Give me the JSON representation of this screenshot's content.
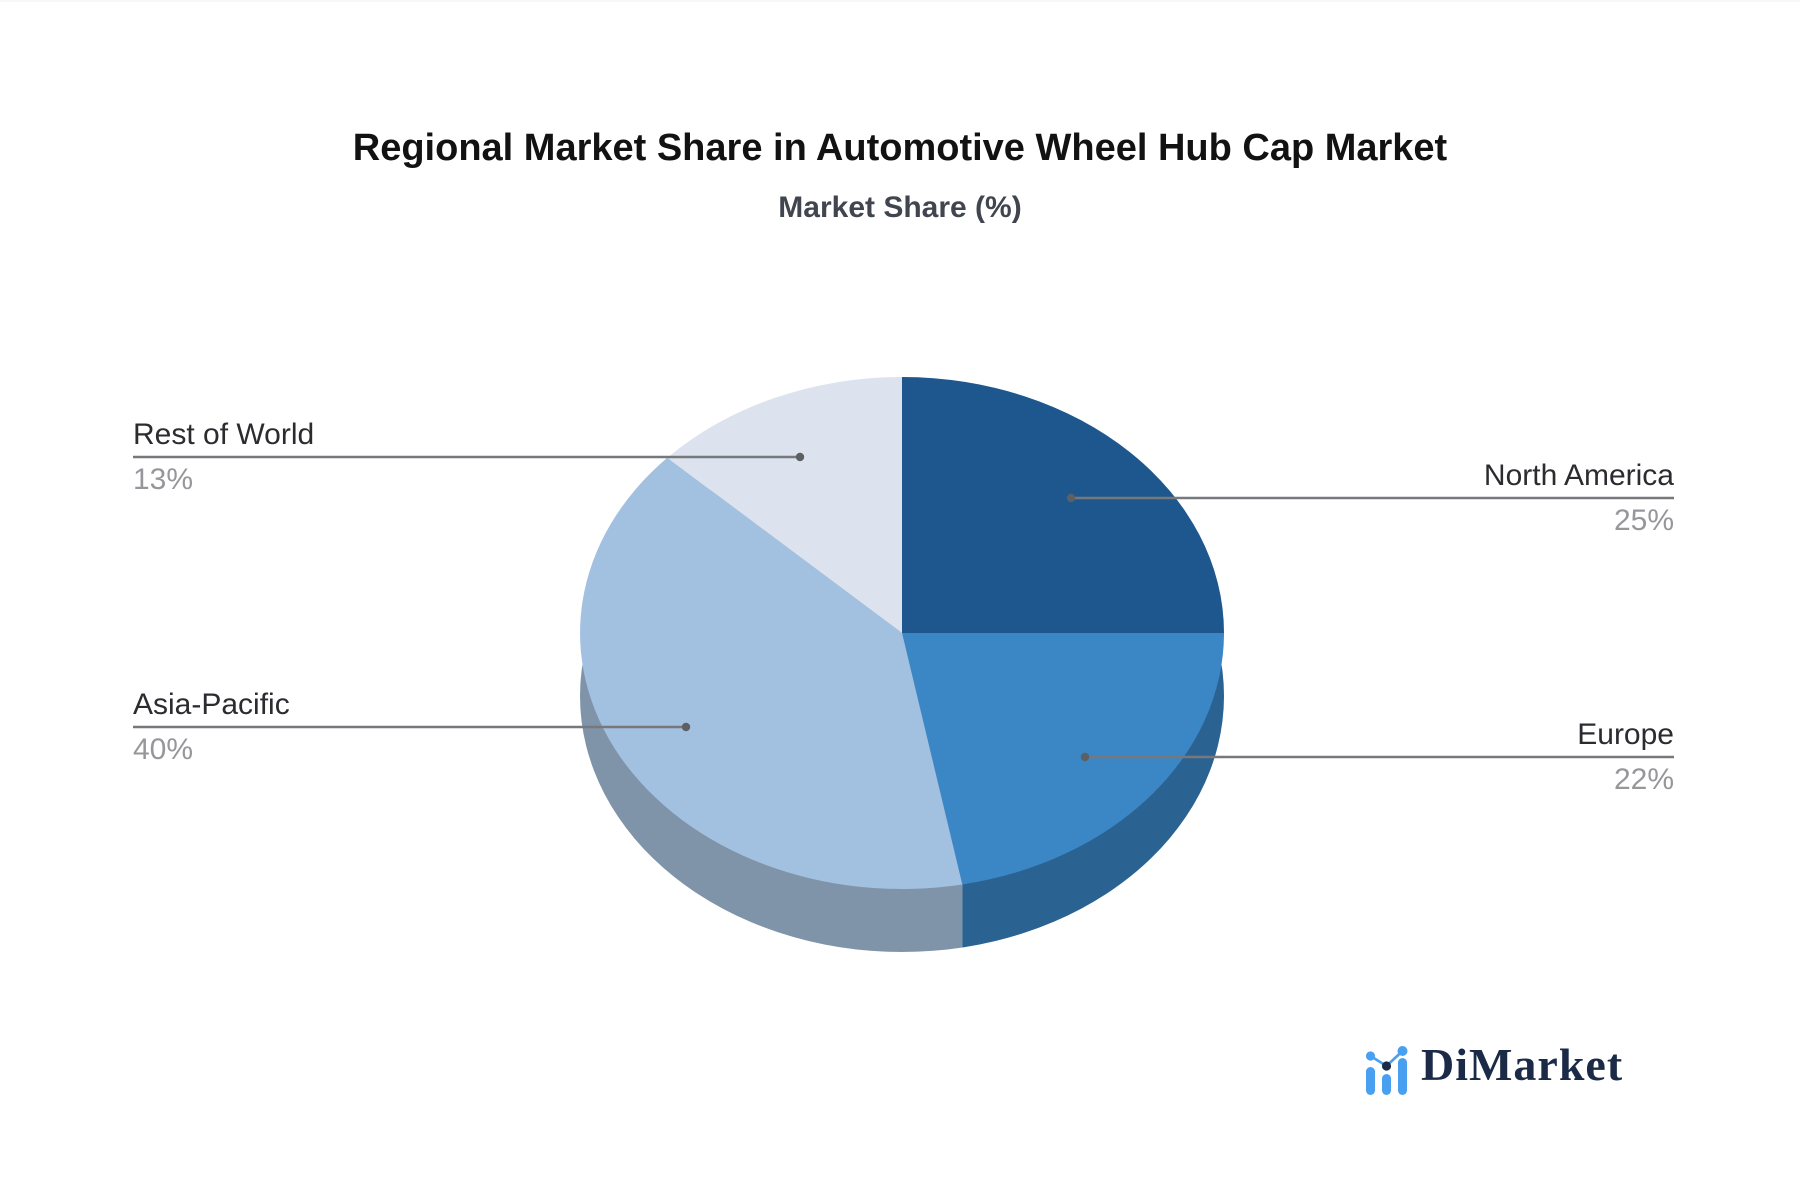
{
  "page": {
    "background": "#ffffff",
    "top_edge_color": "#f6f7f9"
  },
  "header": {
    "title": "Regional Market Share in Automotive Wheel Hub Cap Market",
    "subtitle": "Market Share (%)"
  },
  "chart_data": {
    "type": "pie",
    "style": "pseudo-3d",
    "title": "Regional Market Share in Automotive Wheel Hub Cap Market",
    "subtitle": "Market Share (%)",
    "unit": "%",
    "start_angle": "12 o'clock",
    "direction": "clockwise",
    "legend_position": "callout-labels",
    "slices": [
      {
        "label": "North America",
        "value": 25,
        "display": "25%",
        "color": "#1d578e",
        "label_side": "right"
      },
      {
        "label": "Europe",
        "value": 22,
        "display": "22%",
        "color": "#3b86c5",
        "label_side": "right"
      },
      {
        "label": "Asia-Pacific",
        "value": 40,
        "display": "40%",
        "color": "#a2c0e0",
        "label_side": "left"
      },
      {
        "label": "Rest of World",
        "value": 13,
        "display": "13%",
        "color": "#dce3ee",
        "label_side": "left"
      }
    ],
    "side_rim_colors": {
      "under_asia_pacific": "#8094a9",
      "under_europe": "#2a6292"
    },
    "leader_line_color": "#77787b",
    "leader_dot_color": "#5d5f63",
    "label_name_color": "#2b2b30",
    "label_pct_color": "#97979b"
  },
  "logo": {
    "text": "DiMarket",
    "icon": "bar-line-chart-icon",
    "text_color": "#1a2a47",
    "icon_bar_color": "#4aa0f0",
    "icon_dot_dark_color": "#1a2a47"
  }
}
